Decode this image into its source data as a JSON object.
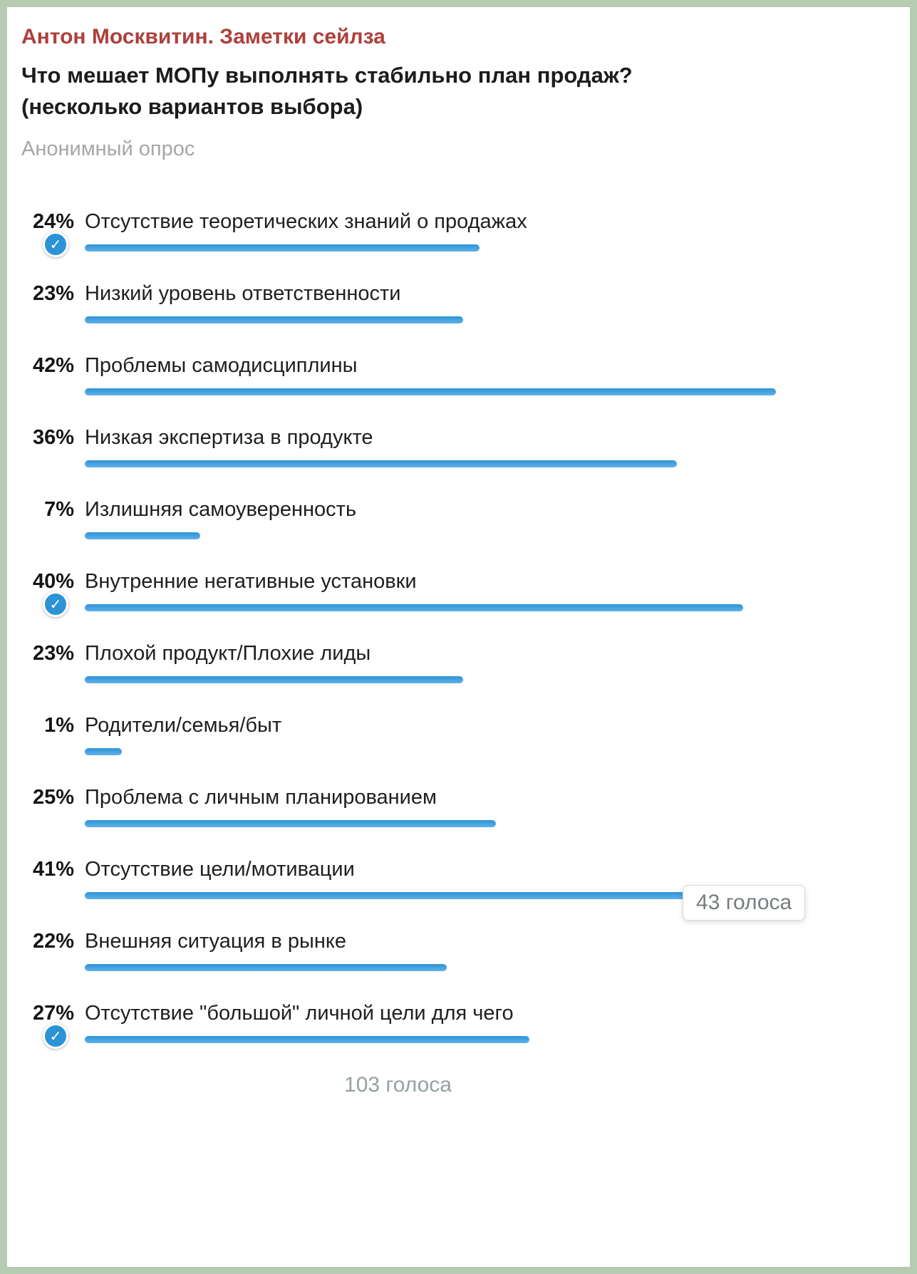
{
  "channel": {
    "name": "Антон Москвитин. Заметки сейлза"
  },
  "poll": {
    "question_line1": "Что мешает МОПу выполнять стабильно план продаж?",
    "question_line2": "(несколько вариантов выбора)",
    "type_label": "Анонимный опрос",
    "options": [
      {
        "pct": "24%",
        "value": 24,
        "label": "Отсутствие теоретических знаний о  продажах",
        "voted": true
      },
      {
        "pct": "23%",
        "value": 23,
        "label": "Низкий уровень ответственности",
        "voted": false
      },
      {
        "pct": "42%",
        "value": 42,
        "label": "Проблемы самодисциплины",
        "voted": false
      },
      {
        "pct": "36%",
        "value": 36,
        "label": "Низкая экспертиза в продукте",
        "voted": false
      },
      {
        "pct": "7%",
        "value": 7,
        "label": "Излишняя самоуверенность",
        "voted": false
      },
      {
        "pct": "40%",
        "value": 40,
        "label": "Внутренние негативные установки",
        "voted": true
      },
      {
        "pct": "23%",
        "value": 23,
        "label": "Плохой продукт/Плохие лиды",
        "voted": false
      },
      {
        "pct": "1%",
        "value": 1,
        "label": "Родители/семья/быт",
        "voted": false
      },
      {
        "pct": "25%",
        "value": 25,
        "label": "Проблема с личным планированием",
        "voted": false
      },
      {
        "pct": "41%",
        "value": 41,
        "label": "Отсутствие цели/мотивации",
        "voted": false
      },
      {
        "pct": "22%",
        "value": 22,
        "label": "Внешняя ситуация в рынке",
        "voted": false
      },
      {
        "pct": "27%",
        "value": 27,
        "label": "Отсутствие \"большой\" личной цели для чего",
        "voted": true
      }
    ],
    "max_value": 42,
    "total_votes": "103 голоса",
    "tooltip": "43 голоса",
    "check_glyph": "✓"
  },
  "colors": {
    "frame": "#b7cbb2",
    "channel": "#ad403b",
    "bar_top": "#2e94d8",
    "bar_bottom": "#5fb2e7",
    "check": "#2b93d6"
  }
}
